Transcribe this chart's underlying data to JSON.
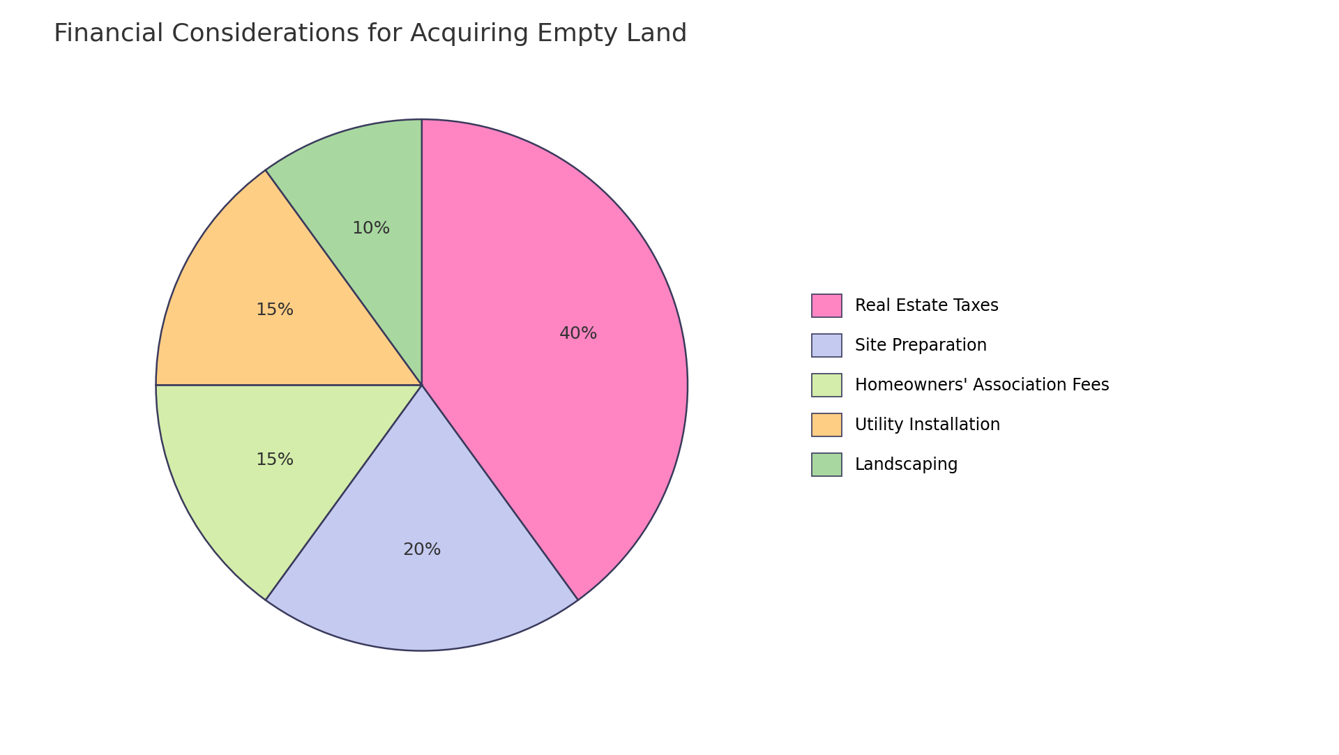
{
  "title": "Financial Considerations for Acquiring Empty Land",
  "labels": [
    "Real Estate Taxes",
    "Site Preparation",
    "Homeowners' Association Fees",
    "Utility Installation",
    "Landscaping"
  ],
  "values": [
    40,
    20,
    15,
    15,
    10
  ],
  "colors": [
    "#FF85C2",
    "#C5CAF0",
    "#D4EDAA",
    "#FFCE85",
    "#A8D8A0"
  ],
  "edge_color": "#3a3a5c",
  "text_color": "#333333",
  "background_color": "#ffffff",
  "title_fontsize": 26,
  "label_fontsize": 18,
  "legend_fontsize": 17,
  "startangle": 90
}
